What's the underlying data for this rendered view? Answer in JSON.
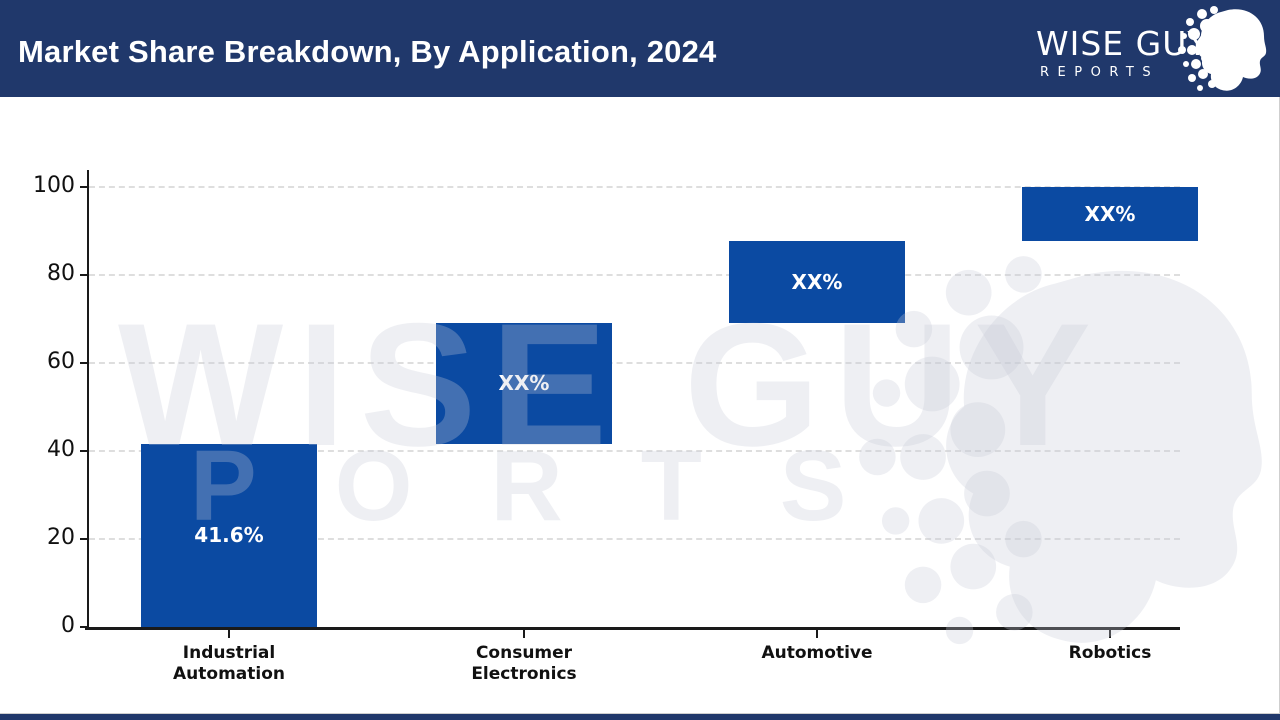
{
  "header": {
    "title": "Market Share Breakdown, By Application, 2024",
    "logo": {
      "name": "WISE GUY",
      "tagline": "REPORTS"
    }
  },
  "watermark": {
    "line1": "WISE GUY",
    "line2": "PORTS"
  },
  "chart_data": {
    "type": "bar",
    "variant": "waterfall",
    "title": "Market Share Breakdown, By Application, 2024",
    "categories": [
      "Industrial Automation",
      "Consumer Electronics",
      "Automotive",
      "Robotics"
    ],
    "category_lines": [
      [
        "Industrial",
        "Automation"
      ],
      [
        "Consumer",
        "Electronics"
      ],
      [
        "Automotive"
      ],
      [
        "Robotics"
      ]
    ],
    "segments": [
      {
        "category": "Industrial Automation",
        "start": 0,
        "end": 41.6,
        "label": "41.6%"
      },
      {
        "category": "Consumer Electronics",
        "start": 41.6,
        "end": 69.1,
        "label": "XX%"
      },
      {
        "category": "Automotive",
        "start": 69.1,
        "end": 87.8,
        "label": "XX%"
      },
      {
        "category": "Robotics",
        "start": 87.8,
        "end": 100,
        "label": "XX%"
      }
    ],
    "xlabel": "",
    "ylabel": "",
    "ylim": [
      0,
      100
    ],
    "yticks": [
      0,
      20,
      40,
      60,
      80,
      100
    ],
    "grid": {
      "horizontal": true,
      "style": "dashed",
      "color": "#dedede"
    },
    "legend": "none",
    "bar_color": "#0b4aa2",
    "bar_label_color": "#ffffff"
  },
  "colors": {
    "header_bg": "#20386b",
    "footer_bg": "#20386b",
    "bar": "#0b4aa2",
    "axis": "#1a1a1a",
    "grid": "#dedede",
    "watermark": "#eff0f4"
  }
}
